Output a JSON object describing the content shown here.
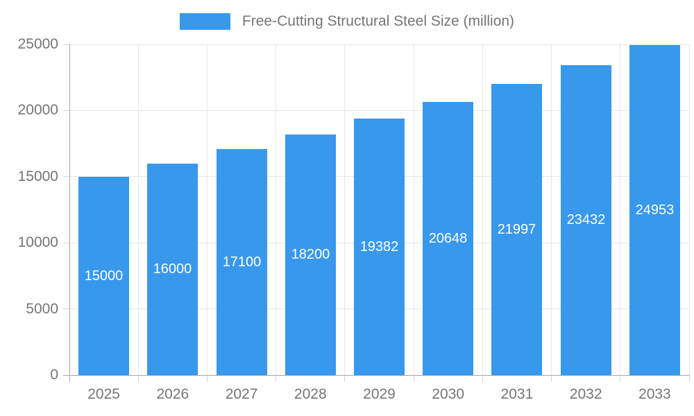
{
  "chart_data": {
    "type": "bar",
    "title": "Free-Cutting Structural Steel Size (million)",
    "legend": {
      "label": "Free-Cutting Structural Steel Size (million)",
      "position": "top"
    },
    "categories": [
      "2025",
      "2026",
      "2027",
      "2028",
      "2029",
      "2030",
      "2031",
      "2032",
      "2033"
    ],
    "values": [
      15000,
      16000,
      17100,
      18200,
      19382,
      20648,
      21997,
      23432,
      24953
    ],
    "value_labels": [
      "15000",
      "16000",
      "17100",
      "18200",
      "19382",
      "20648",
      "21997",
      "23432",
      "24953"
    ],
    "xlabel": "",
    "ylabel": "",
    "ylim": [
      0,
      25000
    ],
    "ytick_step": 5000,
    "y_tick_labels": [
      "0",
      "5000",
      "10000",
      "15000",
      "20000",
      "25000"
    ],
    "grid": true,
    "colors": {
      "bar": "#3898ec",
      "gridline": "#e6e6e6",
      "axis": "#a6a6a6",
      "tick": "#d4d4d4",
      "label_text": "#757575",
      "value_label_text": "#ffffff",
      "background": "#ffffff"
    }
  }
}
